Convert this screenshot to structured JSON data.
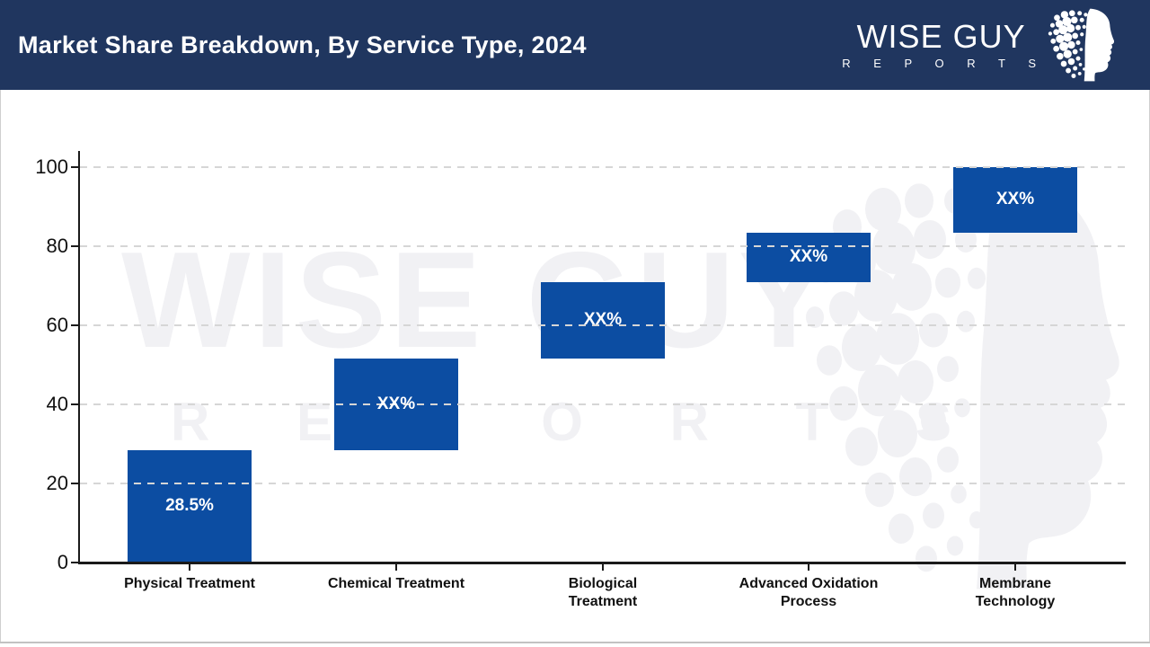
{
  "header": {
    "title": "Market Share Breakdown, By Service Type, 2024",
    "logo": {
      "name": "WISE GUY",
      "sub": "R E P O R T S"
    }
  },
  "watermark": {
    "line1": "WISE GUY",
    "line2": "R E P O R T S"
  },
  "chart_data": {
    "type": "bar",
    "subtype": "waterfall",
    "title": "Market Share Breakdown, By Service Type, 2024",
    "categories": [
      "Physical Treatment",
      "Chemical Treatment",
      "Biological\nTreatment",
      "Advanced Oxidation\nProcess",
      "Membrane\nTechnology"
    ],
    "segments": [
      {
        "category": "Physical Treatment",
        "start": 0,
        "end": 28.5,
        "label": "28.5%"
      },
      {
        "category": "Chemical Treatment",
        "start": 28.5,
        "end": 51.5,
        "label": "XX%"
      },
      {
        "category": "Biological Treatment",
        "start": 51.5,
        "end": 71,
        "label": "XX%"
      },
      {
        "category": "Advanced Oxidation Process",
        "start": 71,
        "end": 83.5,
        "label": "XX%"
      },
      {
        "category": "Membrane Technology",
        "start": 83.5,
        "end": 100,
        "label": "XX%"
      }
    ],
    "xlabel": "",
    "ylabel": "",
    "ylim": [
      0,
      100
    ],
    "yticks": [
      0,
      20,
      40,
      60,
      80,
      100
    ],
    "grid": "horizontal dashed, drawn over bars",
    "legend": null,
    "colors": {
      "bar": "#0c4da2",
      "bar_label": "#ffffff",
      "header_bg": "#20365f",
      "axis": "#1a1a1a",
      "gridline": "#d6d6d6",
      "watermark": "#f1f1f4"
    }
  }
}
